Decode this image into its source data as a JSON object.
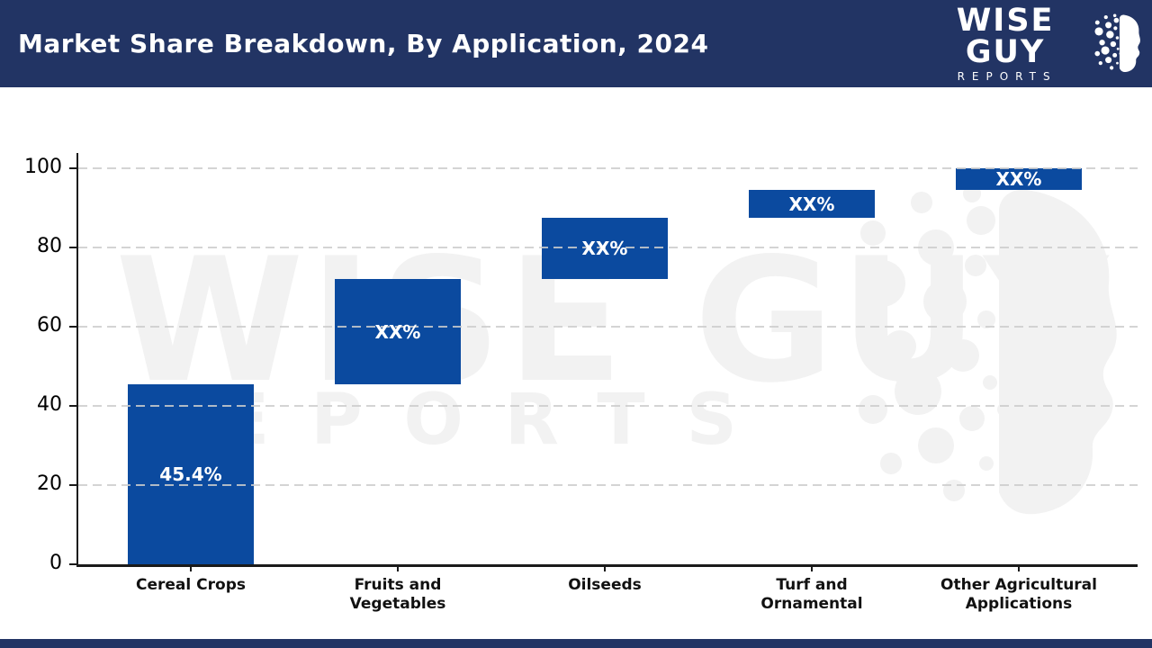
{
  "header": {
    "title": "Market Share Breakdown, By Application, 2024",
    "logo": {
      "line1": "WISE GUY",
      "line2": "REPORTS"
    }
  },
  "watermark": {
    "line1": "WISE GUY",
    "line2": "REPORTS"
  },
  "colors": {
    "header_bg": "#223464",
    "bar": "#0b4a9f",
    "grid": "#cdcdcd",
    "axis": "#1a1a1a",
    "bar_label": "#ffffff",
    "watermark": "#f2f2f2"
  },
  "chart_data": {
    "type": "bar",
    "subtype": "waterfall",
    "title": "Market Share Breakdown, By Application, 2024",
    "xlabel": "",
    "ylabel": "",
    "ylim": [
      0,
      105
    ],
    "yticks": [
      0,
      20,
      40,
      60,
      80,
      100
    ],
    "grid": "dashed-horizontal",
    "legend": "none",
    "categories": [
      "Cereal Crops",
      "Fruits and Vegetables",
      "Oilseeds",
      "Turf and Ornamental",
      "Other Agricultural Applications"
    ],
    "category_lines": [
      [
        "Cereal Crops"
      ],
      [
        "Fruits and",
        "Vegetables"
      ],
      [
        "Oilseeds"
      ],
      [
        "Turf and",
        "Ornamental"
      ],
      [
        "Other Agricultural",
        "Applications"
      ]
    ],
    "segments": [
      {
        "label": "45.4%",
        "start": 0,
        "end": 45.4
      },
      {
        "label": "XX%",
        "start": 45.4,
        "end": 72
      },
      {
        "label": "XX%",
        "start": 72,
        "end": 87.5
      },
      {
        "label": "XX%",
        "start": 87.5,
        "end": 94.5
      },
      {
        "label": "XX%",
        "start": 94.5,
        "end": 100
      }
    ]
  }
}
